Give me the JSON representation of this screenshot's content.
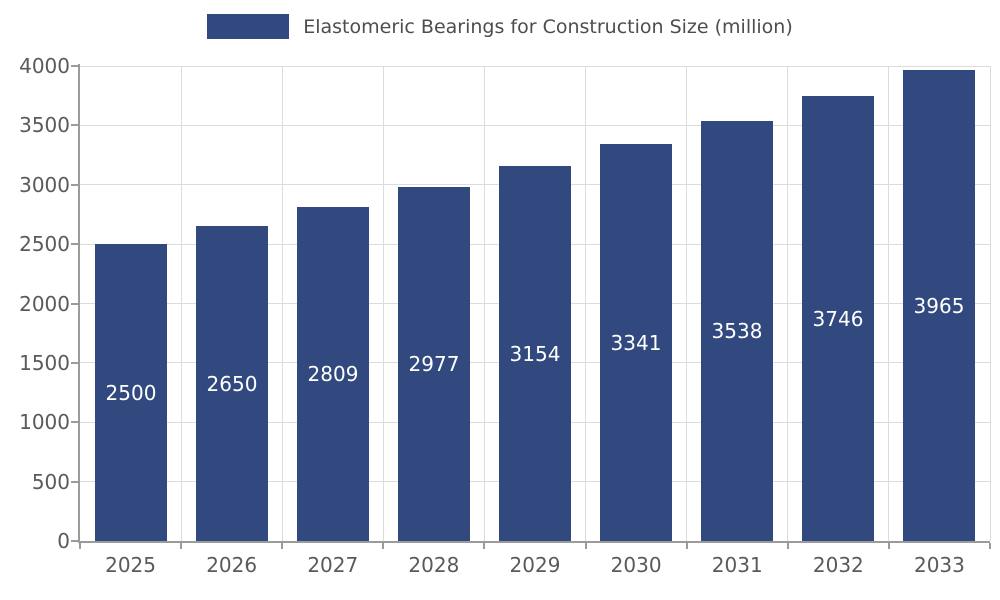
{
  "chart_data": {
    "type": "bar",
    "title": "Elastomeric Bearings for Construction Size (million)",
    "categories": [
      "2025",
      "2026",
      "2027",
      "2028",
      "2029",
      "2030",
      "2031",
      "2032",
      "2033"
    ],
    "values": [
      2500,
      2650,
      2809,
      2977,
      3154,
      3341,
      3538,
      3746,
      3965
    ],
    "xlabel": "",
    "ylabel": "",
    "ylim": [
      0,
      4000
    ],
    "ytick_step": 500,
    "legend_position": "top",
    "grid": true,
    "bar_color": "#31497e",
    "bar_label_color": "#ffffff"
  }
}
